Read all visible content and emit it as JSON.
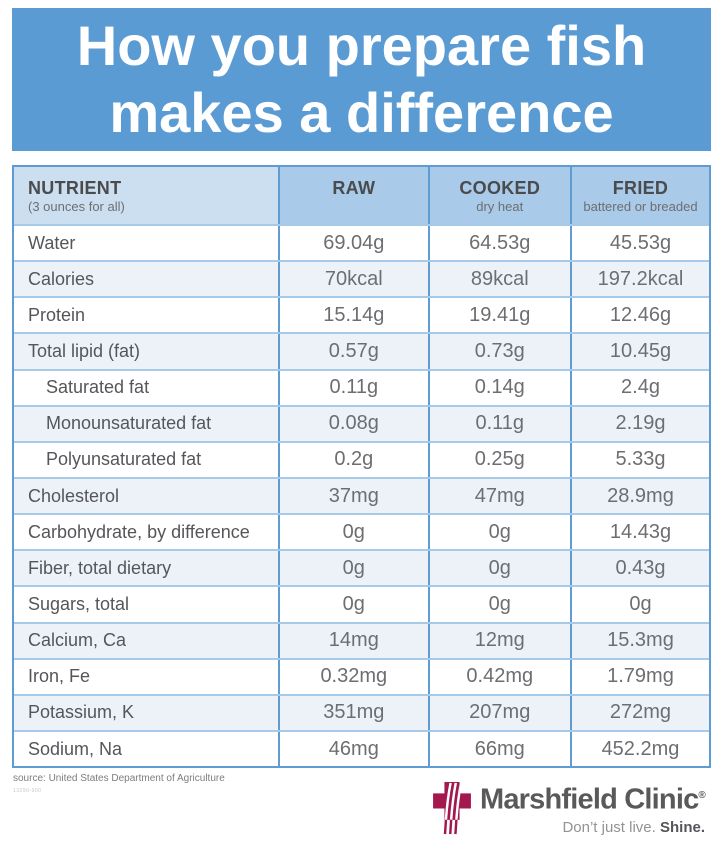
{
  "colors": {
    "banner_blue": "#5B9BD3",
    "table_outer_border": "#5E9CD3",
    "column_separator": "#5E9CD3",
    "row_separator": "#A6CAE9",
    "header_nutrient_bg": "#CBDFF1",
    "header_value_bg": "#A9CAE8",
    "row_alt_bg": "#EDF2F9",
    "label_text": "#55565A",
    "value_text": "#6D6E71",
    "logo_maroon": "#A3194E"
  },
  "header": {
    "title_line1": "How you prepare fish",
    "title_line2": "makes a difference"
  },
  "chart_data": {
    "type": "table",
    "title": "How you prepare fish makes a difference",
    "columns": [
      {
        "label": "NUTRIENT",
        "sublabel": "(3 ounces for all)"
      },
      {
        "label": "RAW",
        "sublabel": ""
      },
      {
        "label": "COOKED",
        "sublabel": "dry heat"
      },
      {
        "label": "FRIED",
        "sublabel": "battered or breaded"
      }
    ],
    "rows": [
      {
        "label": "Water",
        "indent": false,
        "values": [
          "69.04g",
          "64.53g",
          "45.53g"
        ]
      },
      {
        "label": "Calories",
        "indent": false,
        "values": [
          "70kcal",
          "89kcal",
          "197.2kcal"
        ]
      },
      {
        "label": "Protein",
        "indent": false,
        "values": [
          "15.14g",
          "19.41g",
          "12.46g"
        ]
      },
      {
        "label": "Total lipid (fat)",
        "indent": false,
        "values": [
          "0.57g",
          "0.73g",
          "10.45g"
        ]
      },
      {
        "label": "Saturated fat",
        "indent": true,
        "values": [
          "0.11g",
          "0.14g",
          "2.4g"
        ]
      },
      {
        "label": "Monounsaturated fat",
        "indent": true,
        "values": [
          "0.08g",
          "0.11g",
          "2.19g"
        ]
      },
      {
        "label": "Polyunsaturated fat",
        "indent": true,
        "values": [
          "0.2g",
          "0.25g",
          "5.33g"
        ]
      },
      {
        "label": "Cholesterol",
        "indent": false,
        "values": [
          "37mg",
          "47mg",
          "28.9mg"
        ]
      },
      {
        "label": "Carbohydrate, by difference",
        "indent": false,
        "values": [
          "0g",
          "0g",
          "14.43g"
        ]
      },
      {
        "label": "Fiber, total dietary",
        "indent": false,
        "values": [
          "0g",
          "0g",
          "0.43g"
        ]
      },
      {
        "label": "Sugars, total",
        "indent": false,
        "values": [
          "0g",
          "0g",
          "0g"
        ]
      },
      {
        "label": "Calcium, Ca",
        "indent": false,
        "values": [
          "14mg",
          "12mg",
          "15.3mg"
        ]
      },
      {
        "label": "Iron, Fe",
        "indent": false,
        "values": [
          "0.32mg",
          "0.42mg",
          "1.79mg"
        ]
      },
      {
        "label": "Potassium, K",
        "indent": false,
        "values": [
          "351mg",
          "207mg",
          "272mg"
        ]
      },
      {
        "label": "Sodium, Na",
        "indent": false,
        "values": [
          "46mg",
          "66mg",
          "452.2mg"
        ]
      }
    ],
    "source": "United States Department of Agriculture"
  },
  "footer": {
    "source": "source: United States Department of Agriculture",
    "code": "13290-000",
    "logo_name": "Marshfield Clinic",
    "registered_mark": "®",
    "tagline_prefix": "Don’t just live. ",
    "tagline_emphasis": "Shine."
  }
}
